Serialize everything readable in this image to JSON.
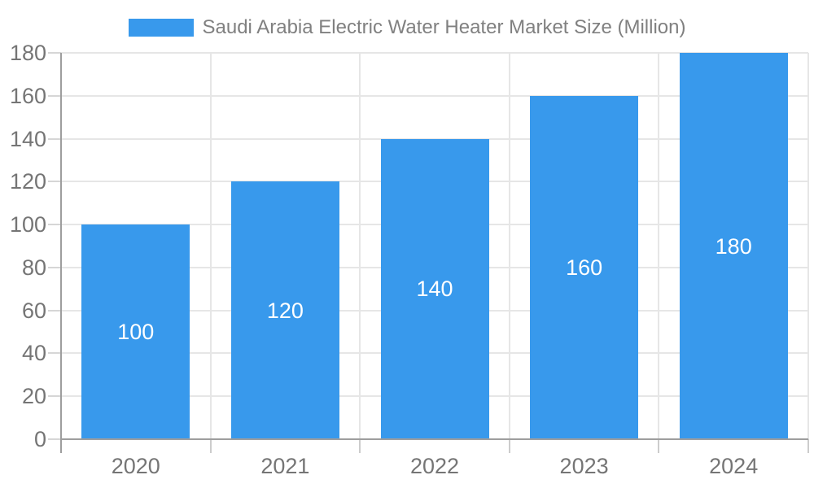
{
  "chart_data": {
    "type": "bar",
    "title": "Saudi Arabia Electric Water Heater Market Size (Million)",
    "categories": [
      "2020",
      "2021",
      "2022",
      "2023",
      "2024"
    ],
    "values": [
      100,
      120,
      140,
      160,
      180
    ],
    "bar_labels": [
      "100",
      "120",
      "140",
      "160",
      "180"
    ],
    "xlabel": "",
    "ylabel": "",
    "ylim": [
      0,
      180
    ],
    "ytick_step": 20,
    "ytick_labels": [
      "0",
      "20",
      "40",
      "60",
      "80",
      "100",
      "120",
      "140",
      "160",
      "180"
    ],
    "grid": true,
    "legend_position": "top"
  },
  "colors": {
    "bar": "#3899EC",
    "bar_label": "#FFFFFF",
    "grid": "#E6E6E6",
    "axis": "#9E9E9E",
    "boundary_tick": "#CCCCCC",
    "y_tick_mark": "#D6D6D6",
    "tick_label": "#757575",
    "legend_label": "#808080",
    "background": "#FFFFFF"
  }
}
